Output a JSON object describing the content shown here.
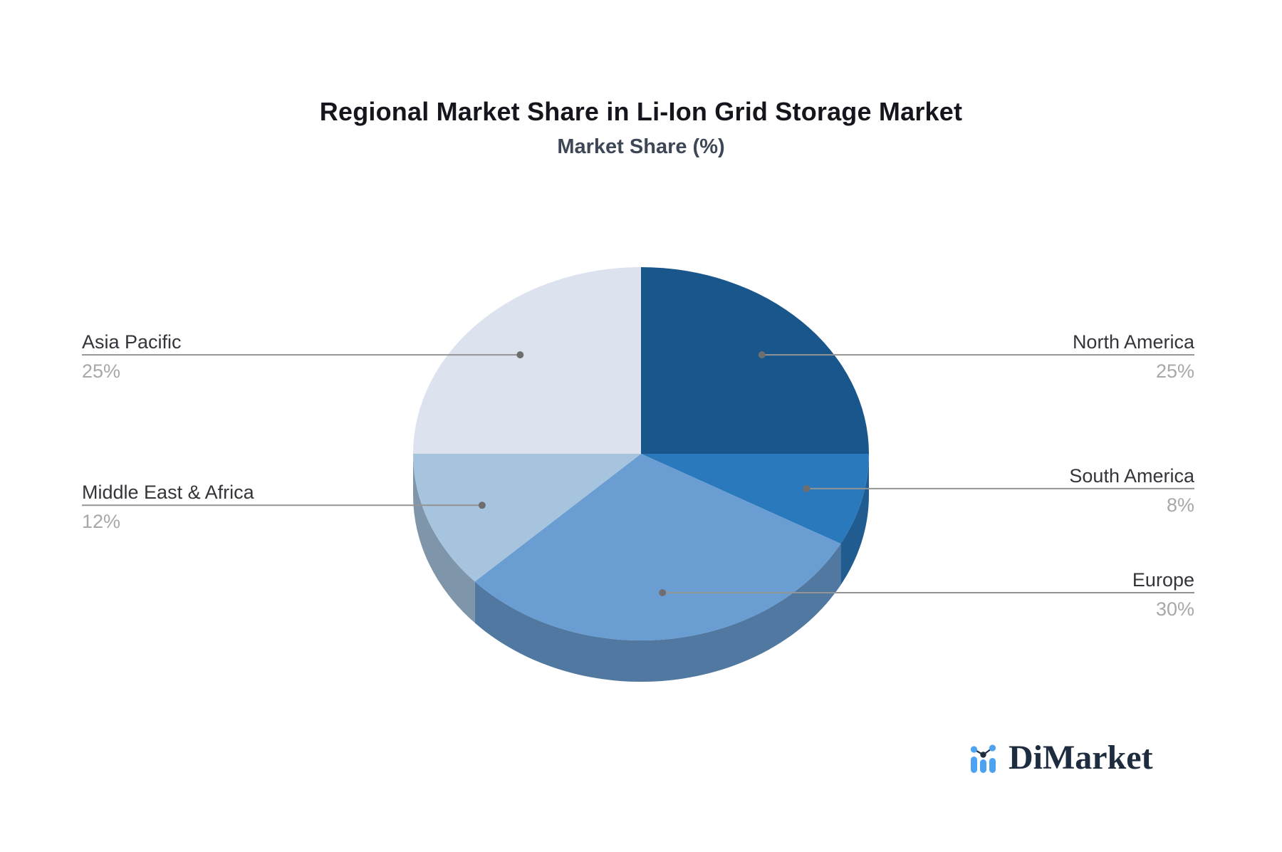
{
  "title": "Regional Market Share in Li-Ion Grid Storage Market",
  "subtitle": "Market Share (%)",
  "chart_data": {
    "type": "pie",
    "style": "3d-pie",
    "title": "Regional Market Share in Li-Ion Grid Storage Market",
    "subtitle": "Market Share (%)",
    "categories": [
      "North America",
      "South America",
      "Europe",
      "Middle East & Africa",
      "Asia Pacific"
    ],
    "values": [
      25,
      8,
      30,
      12,
      25
    ],
    "unit": "%",
    "value_labels": [
      "25%",
      "8%",
      "30%",
      "12%",
      "25%"
    ],
    "colors": [
      "#19568C",
      "#2B79BD",
      "#6A9ED2",
      "#A7C4DF",
      "#DCE3EF"
    ],
    "start_angle_deg": 0,
    "direction": "clockwise",
    "legend_position": "callout-labels",
    "label_sides": [
      "right",
      "right",
      "right",
      "left",
      "left"
    ],
    "leader_line_color": "#949494",
    "leader_dot_color": "#6e6e6e",
    "label_color": "#33353A",
    "pct_color": "#A8A8A8"
  },
  "logo": {
    "text": "DiMarket",
    "icon": "bar-chart-with-trend-dots-icon",
    "icon_blue": "#4DA2F2",
    "navy": "#1E2C3F"
  }
}
